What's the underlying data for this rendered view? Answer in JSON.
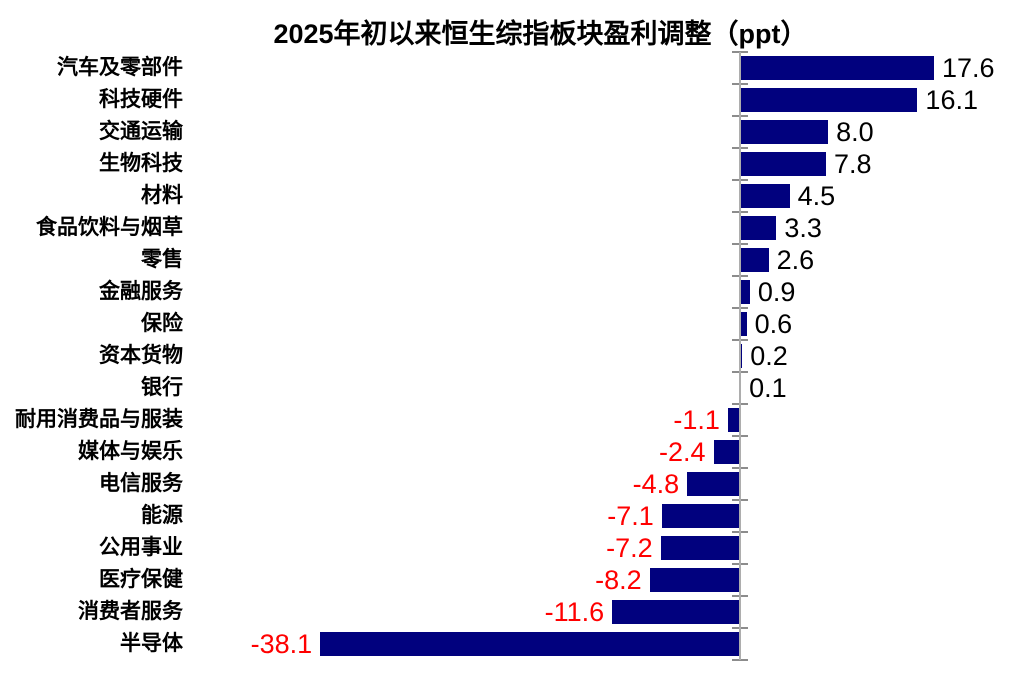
{
  "chart_data": {
    "type": "bar",
    "orientation": "horizontal",
    "title": "2025年初以来恒生综指板块盈利调整（ppt）",
    "categories": [
      "汽车及零部件",
      "科技硬件",
      "交通运输",
      "生物科技",
      "材料",
      "食品饮料与烟草",
      "零售",
      "金融服务",
      "保险",
      "资本货物",
      "银行",
      "耐用消费品与服装",
      "媒体与娱乐",
      "电信服务",
      "能源",
      "公用事业",
      "医疗保健",
      "消费者服务",
      "半导体"
    ],
    "values": [
      17.6,
      16.1,
      8.0,
      7.8,
      4.5,
      3.3,
      2.6,
      0.9,
      0.6,
      0.2,
      0.1,
      -1.1,
      -2.4,
      -4.8,
      -7.1,
      -7.2,
      -8.2,
      -11.6,
      -38.1
    ],
    "value_labels": [
      "17.6",
      "16.1",
      "8.0",
      "7.8",
      "4.5",
      "3.3",
      "2.6",
      "0.9",
      "0.6",
      "0.2",
      "0.1",
      "-1.1",
      "-2.4",
      "-4.8",
      "-7.1",
      "-7.2",
      "-8.2",
      "-11.6",
      "-38.1"
    ],
    "xlabel": "",
    "ylabel": "",
    "xlim": [
      -42,
      25
    ],
    "grid": false,
    "legend": false,
    "colors": {
      "bar": "#01017E",
      "positive_value_label": "#000000",
      "negative_value_label": "#FF0000",
      "axis_line": "#ADADAD",
      "tick": "#8C8C8C"
    }
  }
}
